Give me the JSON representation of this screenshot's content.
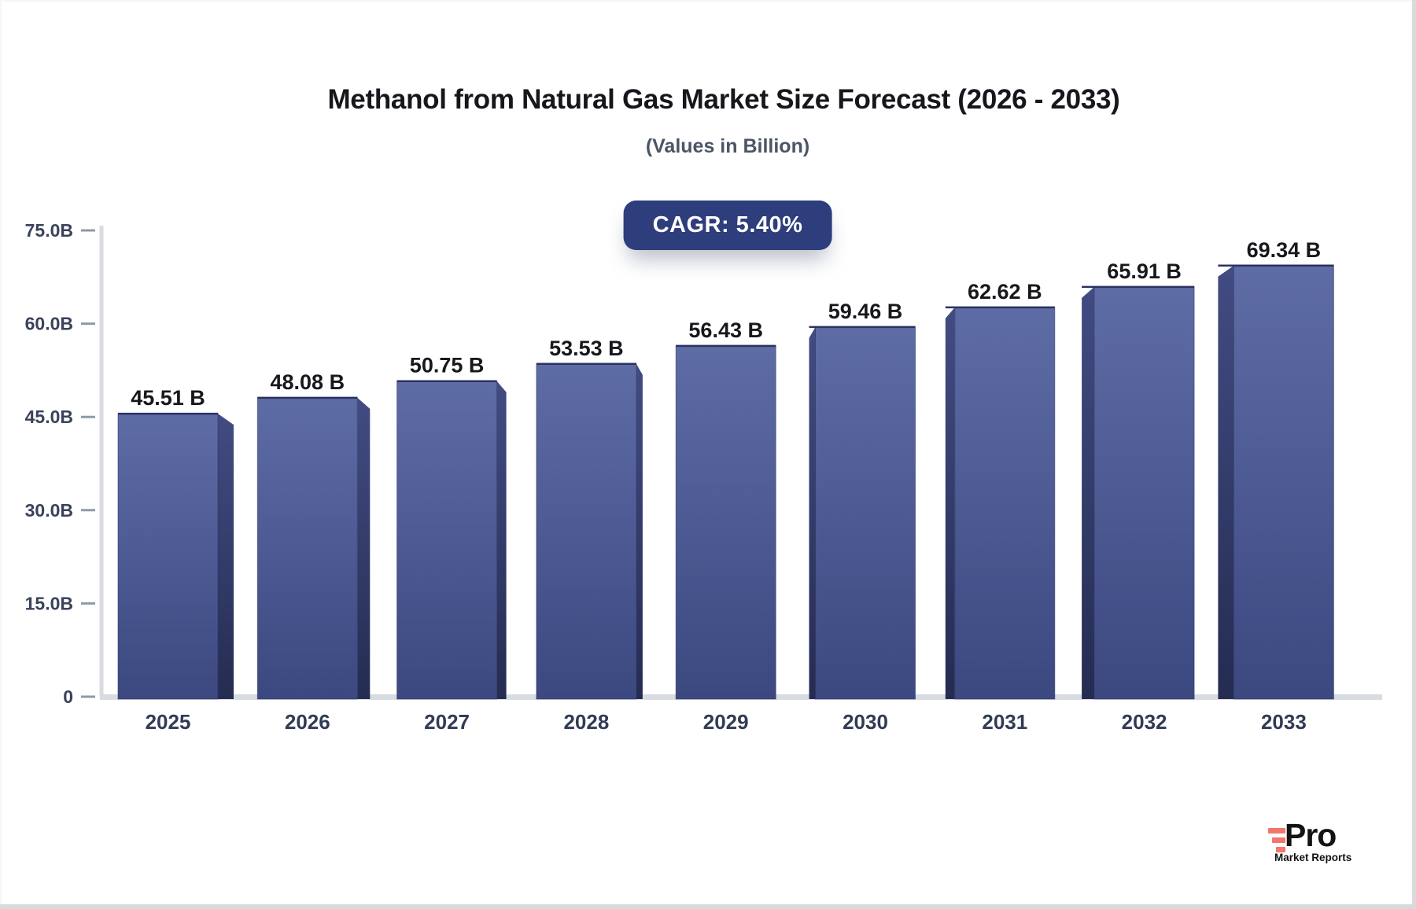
{
  "chart_data": {
    "type": "bar",
    "title": "Methanol from Natural Gas Market Size Forecast (2026 - 2033)",
    "subtitle": "(Values in Billion)",
    "cagr_label": "CAGR: 5.40%",
    "categories": [
      "2025",
      "2026",
      "2027",
      "2028",
      "2029",
      "2030",
      "2031",
      "2032",
      "2033"
    ],
    "values": [
      45.51,
      48.08,
      50.75,
      53.53,
      56.43,
      59.46,
      62.62,
      65.91,
      69.34
    ],
    "value_labels": [
      "45.51 B",
      "48.08 B",
      "50.75 B",
      "53.53 B",
      "56.43 B",
      "59.46 B",
      "62.62 B",
      "65.91 B",
      "69.34 B"
    ],
    "xlabel": "",
    "ylabel": "",
    "ylim": [
      0,
      75
    ],
    "yticks": [
      {
        "label": "75.0B",
        "value": 75
      },
      {
        "label": "60.0B",
        "value": 60
      },
      {
        "label": "45.0B",
        "value": 45
      },
      {
        "label": "30.0B",
        "value": 30
      },
      {
        "label": "15.0B",
        "value": 15
      },
      {
        "label": "0",
        "value": 0
      }
    ],
    "grid": false,
    "legend": false,
    "style": {
      "bar_front_top": "#5E6CA6",
      "bar_front_bottom": "#3C4880",
      "bar_side_top": "#424C82",
      "bar_side_bottom": "#252C52",
      "bar_top_edge": "#2B3261",
      "axis_line": "#D8DBE2",
      "tick_color": "#9099A6",
      "value_label_color": "#17181C",
      "category_label_color": "#313B54",
      "ytick_label_color": "#3A425A",
      "badge_bg": "#2E3D7B",
      "badge_text": "#FFFFFF",
      "title_color": "#15171D",
      "subtitle_color": "#4C5565"
    }
  },
  "logo": {
    "text": "Pro",
    "subtext": "Market Reports",
    "accent": "#F3766C",
    "text_color": "#131313"
  }
}
